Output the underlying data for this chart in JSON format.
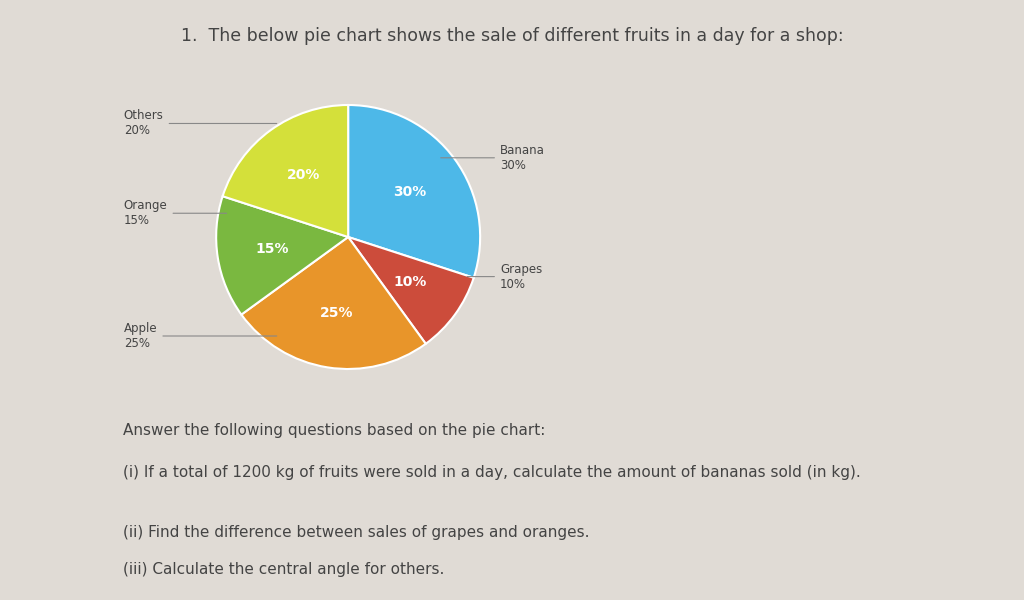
{
  "title": "1.  The below pie chart shows the sale of different fruits in a day for a shop:",
  "labels": [
    "Banana",
    "Grapes",
    "Apple",
    "Orange",
    "Others"
  ],
  "sizes": [
    30,
    10,
    25,
    15,
    20
  ],
  "colors": [
    "#4db8e8",
    "#cc4c3b",
    "#e8952a",
    "#7ab840",
    "#d4e03a"
  ],
  "pct_labels": [
    "30%",
    "10%",
    "25%",
    "15%",
    "20%"
  ],
  "questions": [
    "Answer the following questions based on the pie chart:",
    "(i) If a total of 1200 kg of fruits were sold in a day, calculate the amount of bananas sold (in kg).",
    "(ii) Find the difference between sales of grapes and oranges.",
    "(iii) Calculate the central angle for others."
  ],
  "bg_color": "#e0dbd5",
  "startangle": 90,
  "text_color": "#444444"
}
